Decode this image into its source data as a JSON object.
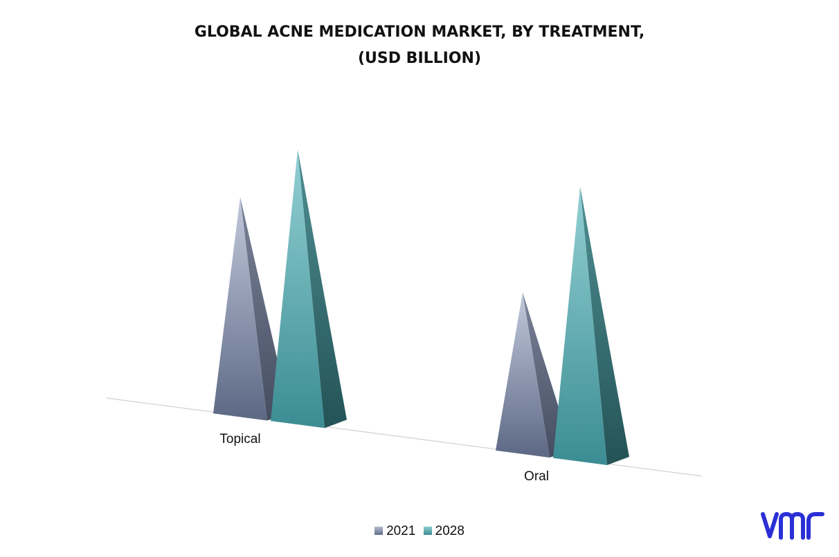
{
  "chart_data": {
    "type": "bar",
    "title_lines": [
      "GLOBAL ACNE MEDICATION MARKET, BY TREATMENT,",
      "(USD BILLION)"
    ],
    "categories": [
      "Topical",
      "Oral"
    ],
    "series": [
      {
        "name": "2021",
        "values": [
          3.2,
          2.35
        ],
        "color": "#8a96b3"
      },
      {
        "name": "2028",
        "values": [
          4.0,
          4.0
        ],
        "color": "#4f9ea3"
      }
    ],
    "xlabel": "",
    "ylabel": "",
    "ylim": [
      0,
      4.0
    ],
    "grid": false,
    "legend_position": "bottom",
    "style": "3d-pyramid"
  },
  "brand": {
    "logo_text": "vmr",
    "color": "#2a2fd6"
  }
}
